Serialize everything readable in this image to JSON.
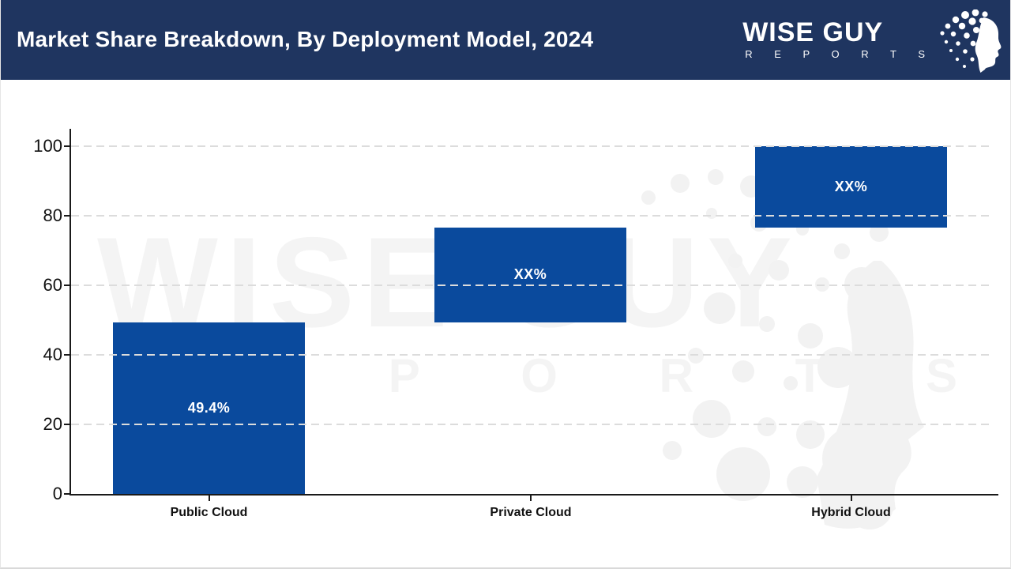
{
  "header": {
    "title": "Market Share Breakdown, By Deployment Model, 2024",
    "logo": {
      "line1": "WISE GUY",
      "line2": "R E P O R T S"
    }
  },
  "watermark": {
    "line1": "WISE GUY",
    "line2": "R E P O R T S"
  },
  "chart_data": {
    "type": "bar",
    "subtype": "floating-segment-breakdown",
    "title": "Market Share Breakdown, By Deployment Model, 2024",
    "categories": [
      "Public Cloud",
      "Private Cloud",
      "Hybrid Cloud"
    ],
    "segments": [
      {
        "category": "Public Cloud",
        "start": 0,
        "end": 49.4,
        "label": "49.4%"
      },
      {
        "category": "Private Cloud",
        "start": 49.4,
        "end": 76.6,
        "label": "XX%"
      },
      {
        "category": "Hybrid Cloud",
        "start": 76.6,
        "end": 100,
        "label": "XX%"
      }
    ],
    "xlabel": "",
    "ylabel": "",
    "ylim": [
      0,
      100
    ],
    "yticks": [
      0,
      20,
      40,
      60,
      80,
      100
    ],
    "grid": "horizontal-dashed",
    "legend": "none",
    "bar_color": "#0a4a9d",
    "bar_label_color": "#ffffff",
    "axis_color": "#1a1a1a",
    "gridline_color": "#dcdcdc"
  },
  "colors": {
    "header_bg": "#1f3560",
    "watermark": "#f4f4f4",
    "background": "#ffffff"
  }
}
